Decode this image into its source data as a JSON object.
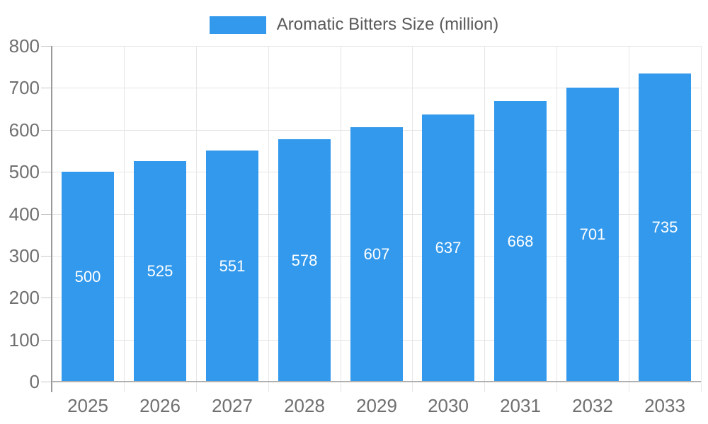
{
  "legend": {
    "series_label": "Aromatic Bitters Size (million)"
  },
  "chart_data": {
    "type": "bar",
    "title": "Aromatic Bitters Size (million)",
    "categories": [
      "2025",
      "2026",
      "2027",
      "2028",
      "2029",
      "2030",
      "2031",
      "2032",
      "2033"
    ],
    "values": [
      500,
      525,
      551,
      578,
      607,
      637,
      668,
      701,
      735
    ],
    "value_labels": [
      "500",
      "525",
      "551",
      "578",
      "607",
      "637",
      "668",
      "701",
      "735"
    ],
    "xlabel": "",
    "ylabel": "",
    "ylim": [
      0,
      800
    ],
    "ytick_step": 100,
    "ytick_labels": [
      "0",
      "100",
      "200",
      "300",
      "400",
      "500",
      "600",
      "700",
      "800"
    ],
    "grid": true,
    "legend_position": "top",
    "colors": {
      "bar": "#3399EC",
      "value_label": "#FFFFFF",
      "axis_text": "#707070",
      "legend_text": "#595959",
      "gridline": "#E6E6E6",
      "axis_line": "#9A9A9A",
      "baseline": "#B0B0B0",
      "tick": "#C8C8C8",
      "background": "#FFFFFF"
    }
  }
}
